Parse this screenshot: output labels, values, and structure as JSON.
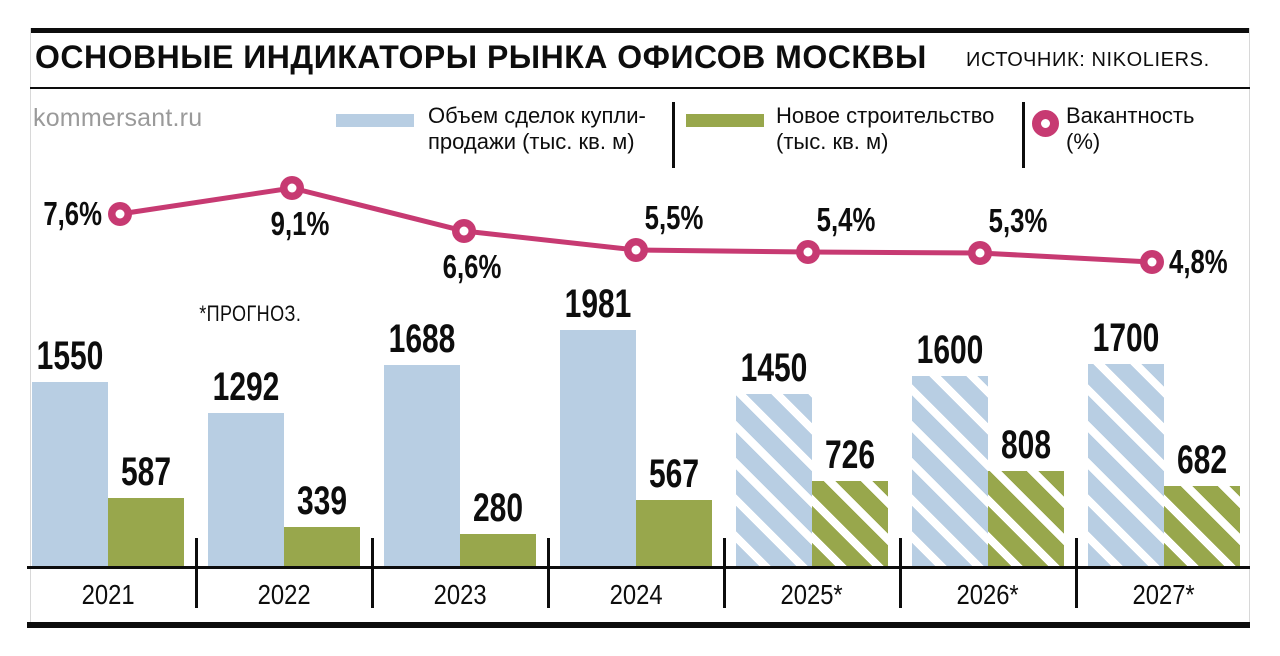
{
  "header": {
    "title": "ОСНОВНЫЕ ИНДИКАТОРЫ РЫНКА ОФИСОВ МОСКВЫ",
    "source": "ИСТОЧНИК: NIKOLIERS."
  },
  "brand": "kommersant.ru",
  "forecast_note": "*ПРОГНОЗ.",
  "colors": {
    "deals_bar": "#b8cee3",
    "construction_bar": "#98a74c",
    "vacancy_line": "#c73a72",
    "text": "#0d0d0d",
    "brand_gray": "#9a9a9a",
    "background": "#ffffff"
  },
  "legend": [
    {
      "label_line1": "Объем сделок купли-",
      "label_line2": "продажи (тыс. кв. м)",
      "swatch_color": "#b8cee3",
      "marker": "bar-swatch"
    },
    {
      "label_line1": "Новое строительство",
      "label_line2": "(тыс. кв. м)",
      "swatch_color": "#98a74c",
      "marker": "bar-swatch"
    },
    {
      "label_line1": "Вакантность",
      "label_line2": "(%)",
      "swatch_color": "#c73a72",
      "marker": "donut"
    }
  ],
  "chart_data": {
    "type": "bar",
    "subtype": "grouped bars with overlaid line",
    "title": "Основные индикаторы рынка офисов Москвы",
    "categories": [
      "2021",
      "2022",
      "2023",
      "2024",
      "2025*",
      "2026*",
      "2027*"
    ],
    "forecast_categories": [
      "2025*",
      "2026*",
      "2027*"
    ],
    "series": [
      {
        "name": "Объем сделок купли-продажи (тыс. кв. м)",
        "type": "bar",
        "color": "#b8cee3",
        "values": [
          1550,
          1292,
          1688,
          1981,
          1450,
          1600,
          1700
        ]
      },
      {
        "name": "Новое строительство (тыс. кв. м)",
        "type": "bar",
        "color": "#98a74c",
        "values": [
          587,
          339,
          280,
          567,
          726,
          808,
          682
        ]
      },
      {
        "name": "Вакантность (%)",
        "type": "line",
        "color": "#c73a72",
        "values": [
          7.6,
          9.1,
          6.6,
          5.5,
          5.4,
          5.3,
          4.8
        ],
        "labels": [
          "7,6%",
          "9,1%",
          "6,6%",
          "5,5%",
          "5,4%",
          "5,3%",
          "4,8%"
        ],
        "label_pos": [
          "left",
          "below",
          "below",
          "above",
          "above",
          "above",
          "right"
        ]
      }
    ],
    "bar_ylim": [
      0,
      2100
    ],
    "line_ylim": [
      4,
      10
    ],
    "grid": false,
    "legend_position": "top",
    "forecast_style": "diagonal white hatching on bars"
  }
}
